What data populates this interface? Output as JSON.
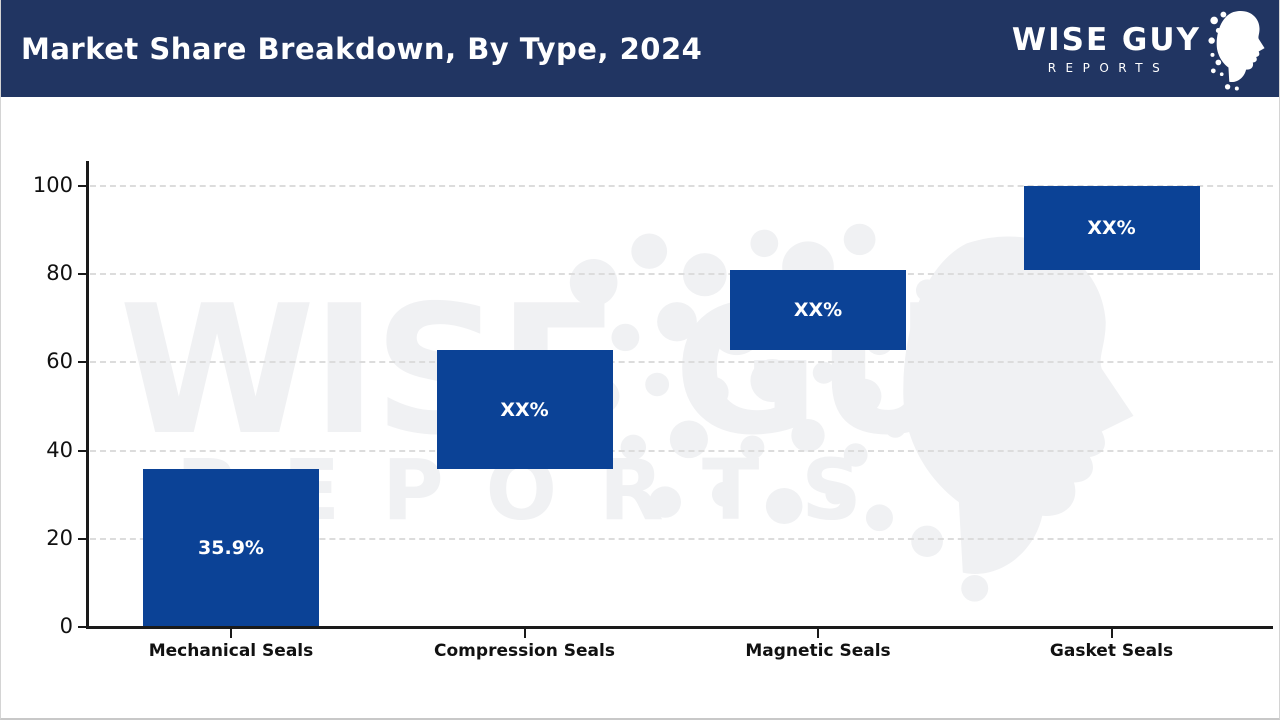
{
  "header": {
    "title": "Market Share Breakdown, By Type, 2024",
    "logo": {
      "line1": "WISE GUY",
      "line2": "REPORTS"
    }
  },
  "watermark": {
    "line1": "WISE GUY",
    "line2": "REPORTS"
  },
  "colors": {
    "header_bg": "#213562",
    "bar": "#0b4296",
    "grid": "#dcdcdc",
    "axis": "#1a1a1a",
    "watermark": "#f0f1f3",
    "bar_label": "#ffffff"
  },
  "chart_data": {
    "type": "bar",
    "subtype": "waterfall",
    "title": "Market Share Breakdown, By Type, 2024",
    "categories": [
      "Mechanical Seals",
      "Compression Seals",
      "Magnetic Seals",
      "Gasket Seals"
    ],
    "segments": [
      {
        "category": "Mechanical Seals",
        "start": 0,
        "end": 35.9,
        "label": "35.9%"
      },
      {
        "category": "Compression Seals",
        "start": 35.9,
        "end": 62.7,
        "label": "XX%"
      },
      {
        "category": "Magnetic Seals",
        "start": 62.7,
        "end": 81.0,
        "label": "XX%"
      },
      {
        "category": "Gasket Seals",
        "start": 81.0,
        "end": 100.0,
        "label": "XX%"
      }
    ],
    "yticks": [
      0,
      20,
      40,
      60,
      80,
      100
    ],
    "ylim": [
      0,
      105
    ],
    "xlabel": "",
    "ylabel": "",
    "grid": "horizontal-dashed",
    "legend": "none",
    "bar_color": "#0b4296"
  }
}
